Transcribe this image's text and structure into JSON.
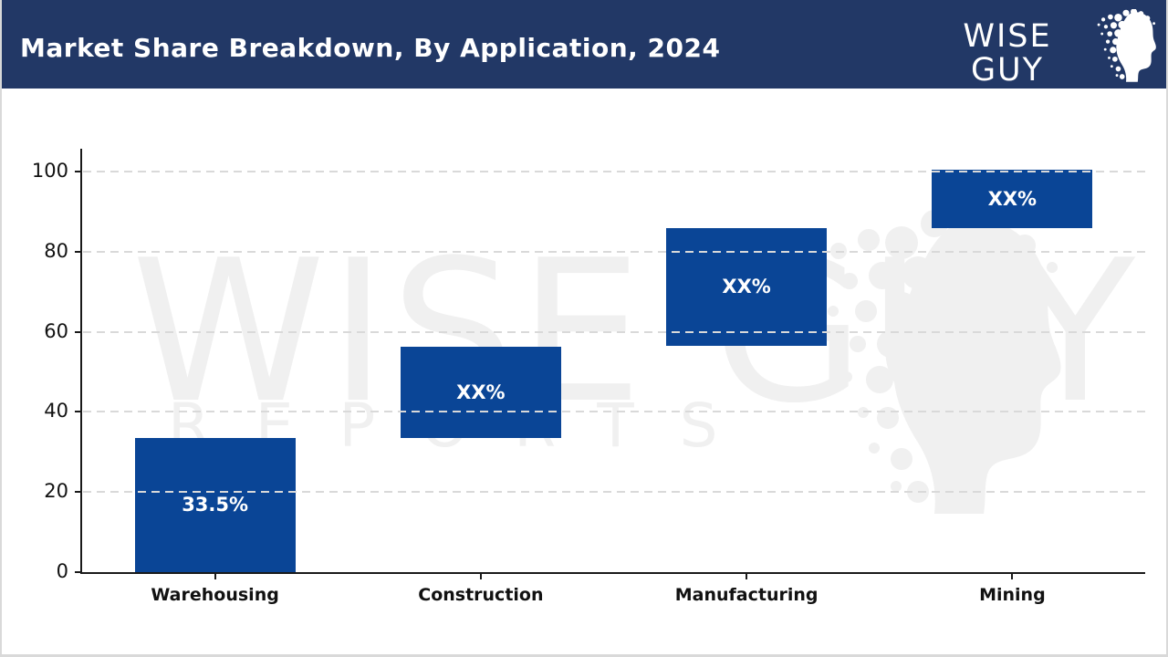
{
  "header": {
    "title": "Market Share Breakdown, By Application, 2024",
    "logo": {
      "line1": "WISE GUY",
      "line2": "REPORTS"
    }
  },
  "watermark": {
    "line1": "WISE GUY",
    "line2": "REPORTS"
  },
  "colors": {
    "header_bg": "#223866",
    "bar": "#0a4596",
    "grid": "#d9d9d9",
    "axis": "#1a1a1a",
    "bar_label": "#ffffff",
    "watermark": "#f0f0f0"
  },
  "chart_data": {
    "type": "bar",
    "subtype": "waterfall",
    "title": "Market Share Breakdown, By Application, 2024",
    "categories": [
      "Warehousing",
      "Construction",
      "Manufacturing",
      "Mining"
    ],
    "segments": [
      {
        "category": "Warehousing",
        "start": 0,
        "end": 33.5,
        "label": "33.5%"
      },
      {
        "category": "Construction",
        "start": 33.5,
        "end": 56.3,
        "label": "XX%"
      },
      {
        "category": "Manufacturing",
        "start": 56.5,
        "end": 85.9,
        "label": "XX%"
      },
      {
        "category": "Mining",
        "start": 85.9,
        "end": 100.4,
        "label": "XX%"
      }
    ],
    "xlabel": "",
    "ylabel": "",
    "ylim": [
      0,
      105
    ],
    "yticks": [
      0,
      20,
      40,
      60,
      80,
      100
    ],
    "grid": "horizontal-dashed",
    "legend": "none"
  }
}
